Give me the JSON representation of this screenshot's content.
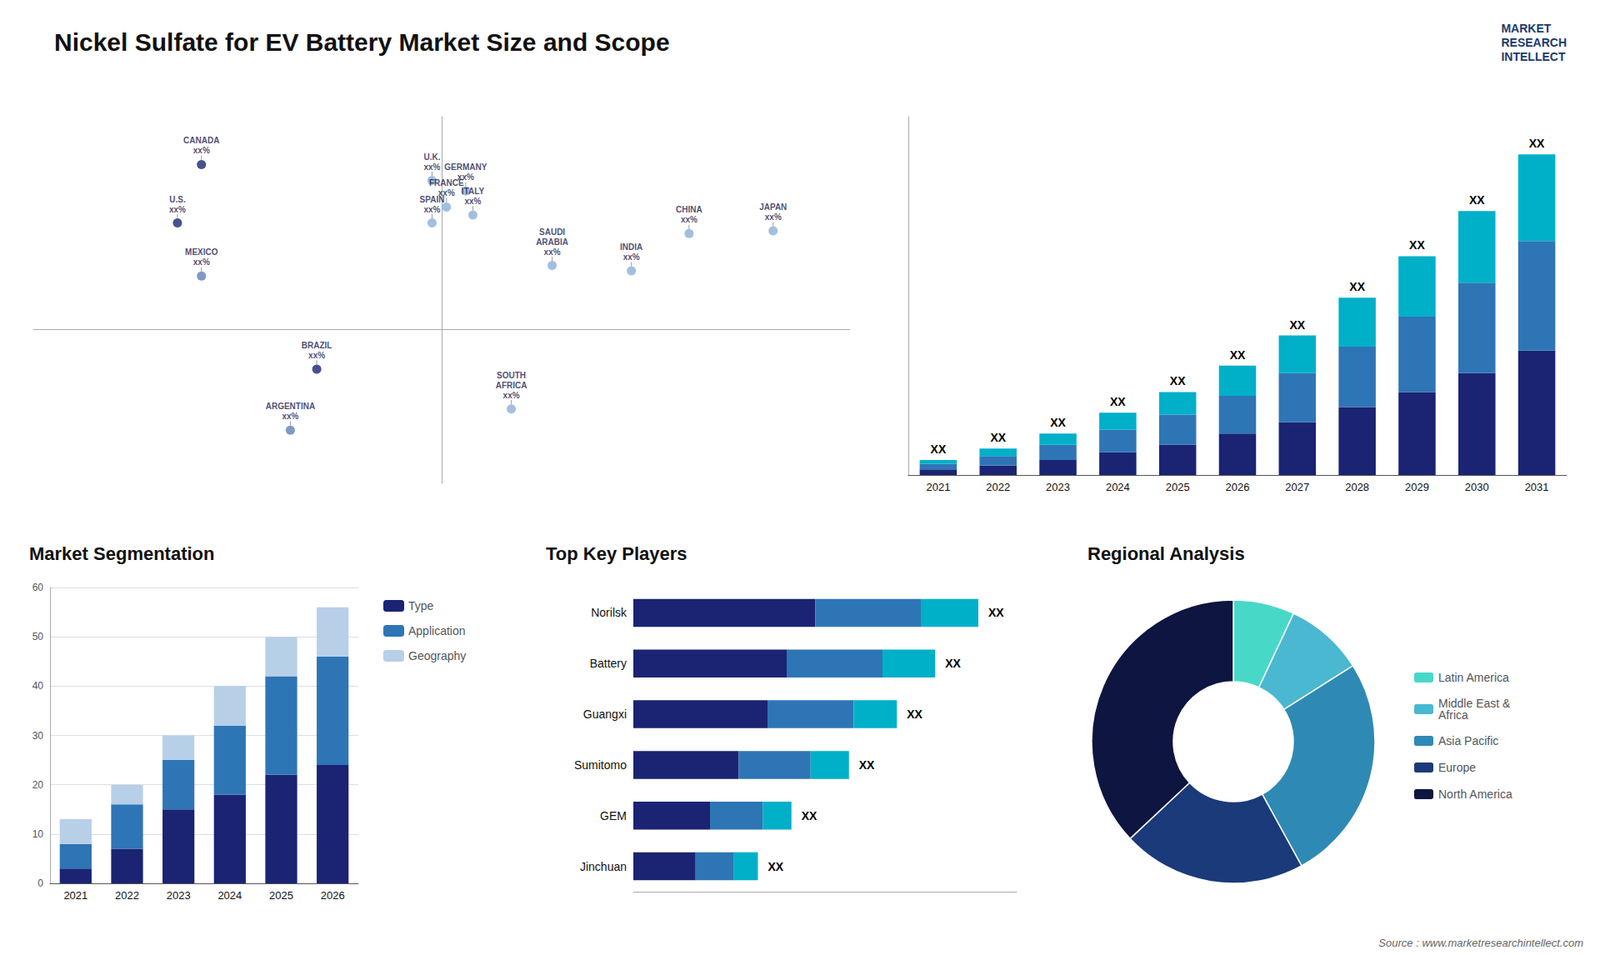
{
  "chart_data": [
    {
      "type": "scatter",
      "title": "Nickel Sulfate for EV Battery Market Size and Scope",
      "annotations": [
        "Source : www.marketresearchintellect.com",
        "MARKET\nRESEARCH\nINTELLECT"
      ],
      "x": [
        -100,
        -110,
        -100,
        -52,
        -63,
        -4,
        2,
        10,
        -4,
        13,
        46,
        29,
        103,
        138,
        79
      ],
      "values": [
        62,
        40,
        20,
        -15,
        -38,
        56,
        46,
        52,
        40,
        43,
        24,
        -30,
        36,
        37,
        22
      ],
      "value_labels": [
        "CANADA\nxx%",
        "U.S.\nxx%",
        "MEXICO\nxx%",
        "BRAZIL\nxx%",
        "ARGENTINA\nxx%",
        "U.K.\nxx%",
        "FRANCE\nxx%",
        "GERMANY\nxx%",
        "SPAIN\nxx%",
        "ITALY\nxx%",
        "SAUDI\nARABIA\nxx%",
        "SOUTH\nAFRICA\nxx%",
        "CHINA\nxx%",
        "JAPAN\nxx%",
        "INDIA\nxx%"
      ],
      "colors": [
        "#1a2472",
        "#1a2472",
        "#6080b8",
        "#1a2472",
        "#6080b8",
        "#8ab0d8",
        "#8ab0d8",
        "#8ab0d8",
        "#8ab0d8",
        "#8ab0d8",
        "#8ab0d8",
        "#8ab0d8",
        "#8ab0d8",
        "#8ab0d8",
        "#8ab0d8"
      ],
      "xlim": [
        -170,
        170
      ],
      "ylim": [
        -58,
        80
      ],
      "tick_labels": false,
      "grid": false
    },
    {
      "type": "bar",
      "stacked": true,
      "categories": [
        "2021",
        "2022",
        "2023",
        "2024",
        "2025",
        "2026",
        "2027",
        "2028",
        "2029",
        "2030",
        "2031"
      ],
      "series": [
        {
          "color": "#1a2472",
          "values": [
            1.5,
            2.5,
            4,
            6,
            8,
            11,
            14,
            18,
            22,
            27,
            33
          ]
        },
        {
          "color": "#2e75b6",
          "values": [
            1.5,
            2.5,
            4,
            6,
            8,
            10,
            13,
            16,
            20,
            24,
            29
          ]
        },
        {
          "color": "#00b0c8",
          "values": [
            1,
            2,
            3,
            4.5,
            6,
            8,
            10,
            13,
            16,
            19,
            23
          ],
          "value_labels": [
            "XX",
            "XX",
            "XX",
            "XX",
            "XX",
            "XX",
            "XX",
            "XX",
            "XX",
            "XX",
            "XX"
          ]
        }
      ],
      "ylim": [
        0,
        95
      ],
      "tick_labels": "x",
      "grid": false
    },
    {
      "type": "bar",
      "stacked": true,
      "title": "Market Segmentation",
      "categories": [
        "2021",
        "2022",
        "2023",
        "2024",
        "2025",
        "2026"
      ],
      "series": [
        {
          "name": "Type",
          "color": "#1a2472",
          "values": [
            3,
            7,
            15,
            18,
            22,
            24
          ]
        },
        {
          "name": "Application",
          "color": "#2e75b6",
          "values": [
            5,
            9,
            10,
            14,
            20,
            22
          ]
        },
        {
          "name": "Geography",
          "color": "#b8cfe8",
          "values": [
            5,
            4,
            5,
            8,
            8,
            10
          ]
        }
      ],
      "ylim": [
        0,
        60
      ],
      "yticks": [
        0,
        10,
        20,
        30,
        40,
        50,
        60
      ],
      "grid": true,
      "legend": "right"
    },
    {
      "type": "bar",
      "orientation": "horizontal",
      "stacked": true,
      "title": "Top Key Players",
      "categories": [
        "Norilsk",
        "Battery",
        "Guangxi",
        "Sumitomo",
        "GEM",
        "Jinchuan"
      ],
      "series": [
        {
          "color": "#1a2472",
          "values": [
            38,
            32,
            28,
            22,
            16,
            13
          ]
        },
        {
          "color": "#2e75b6",
          "values": [
            22,
            20,
            18,
            15,
            11,
            8
          ]
        },
        {
          "color": "#00b0c8",
          "values": [
            12,
            11,
            9,
            8,
            6,
            5
          ],
          "value_labels": [
            "XX",
            "XX",
            "XX",
            "XX",
            "XX",
            "XX"
          ]
        }
      ],
      "xlim": [
        0,
        80
      ],
      "tick_labels": "y",
      "grid": false
    },
    {
      "type": "pie",
      "title": "Regional Analysis",
      "categories": [
        "Latin America",
        "Middle East &\nAfrica",
        "Asia Pacific",
        "Europe",
        "North America"
      ],
      "values": [
        7,
        9,
        26,
        21,
        37
      ],
      "colors": [
        "#48d8c8",
        "#4ab8d0",
        "#2e8ab4",
        "#1a3a7a",
        "#0d1540"
      ],
      "legend": "right"
    }
  ]
}
